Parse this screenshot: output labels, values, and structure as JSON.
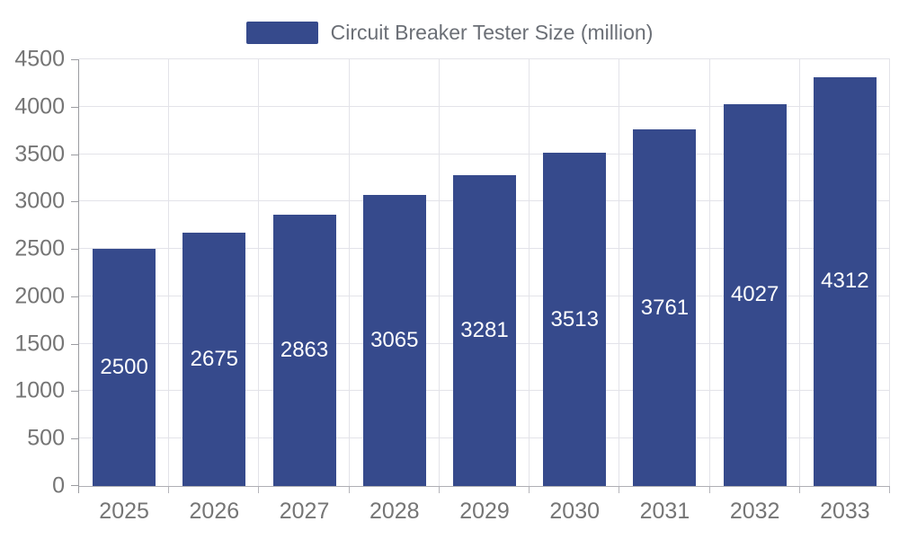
{
  "legend": {
    "label": "Circuit Breaker Tester Size (million)"
  },
  "chart_data": {
    "type": "bar",
    "title": "Circuit Breaker Tester Size (million)",
    "categories": [
      "2025",
      "2026",
      "2027",
      "2028",
      "2029",
      "2030",
      "2031",
      "2032",
      "2033"
    ],
    "values": [
      2500,
      2675,
      2863,
      3065,
      3281,
      3513,
      3761,
      4027,
      4312
    ],
    "series_name": "Circuit Breaker Tester Size (million)",
    "xlabel": "",
    "ylabel": "",
    "ylim": [
      0,
      4500
    ],
    "yticks": [
      0,
      500,
      1000,
      1500,
      2000,
      2500,
      3000,
      3500,
      4000,
      4500
    ],
    "grid": true,
    "legend_position": "top-center",
    "bar_labels_inside": true,
    "colors": {
      "bar": "#364A8C",
      "bar_label": "#FFFFFF",
      "grid_line": "#E3E3E9",
      "axis_line": "#9B9CA1",
      "x_axis_line": "#AFAFB4",
      "tick_mark": "#B5B5BA",
      "axis_text": "#757575",
      "legend_text": "#6B6F76",
      "background": "#FFFFFF"
    }
  }
}
